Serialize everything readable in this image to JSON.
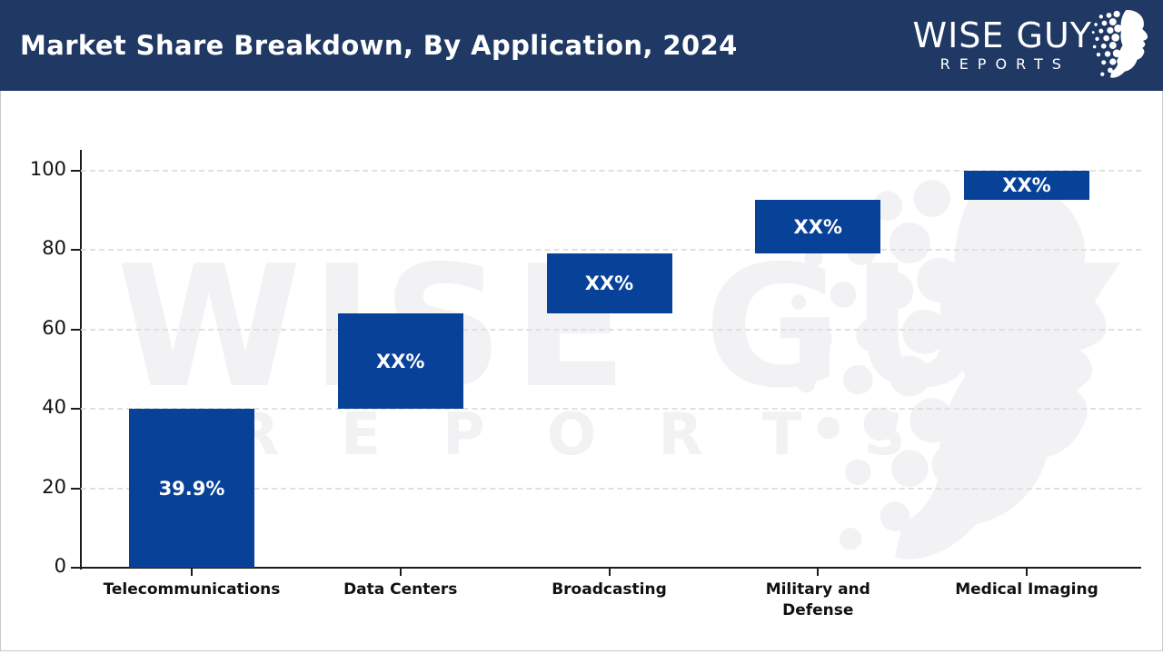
{
  "header": {
    "title": "Market Share Breakdown, By Application, 2024",
    "logo": {
      "line1": "WISE GUY",
      "line2": "REPORTS"
    }
  },
  "watermark": {
    "line1": "WISE GUY",
    "line2": "REPORTS"
  },
  "colors": {
    "header_bg": "#1f3864",
    "bar": "#084298",
    "bar_label": "#ffffff",
    "grid": "#e0e0e0",
    "axis": "#1c1c1c",
    "watermark": "#f2f2f4"
  },
  "chart_data": {
    "type": "bar",
    "variant": "waterfall-floating-bars",
    "title": "Market Share Breakdown, By Application, 2024",
    "xlabel": "",
    "ylabel": "",
    "ylim": [
      0,
      104
    ],
    "yticks": [
      0,
      20,
      40,
      60,
      80,
      100
    ],
    "grid": "horizontal-dashed",
    "legend": "none",
    "categories": [
      "Telecommunications",
      "Data Centers",
      "Broadcasting",
      "Military and\nDefense",
      "Medical Imaging"
    ],
    "segments": [
      {
        "category": "Telecommunications",
        "start": 0,
        "end": 39.9,
        "label": "39.9%"
      },
      {
        "category": "Data Centers",
        "start": 39.9,
        "end": 64,
        "label": "XX%"
      },
      {
        "category": "Broadcasting",
        "start": 64,
        "end": 79,
        "label": "XX%"
      },
      {
        "category": "Military and\nDefense",
        "start": 79,
        "end": 92.6,
        "label": "XX%"
      },
      {
        "category": "Medical Imaging",
        "start": 92.6,
        "end": 100,
        "label": "XX%"
      }
    ]
  }
}
